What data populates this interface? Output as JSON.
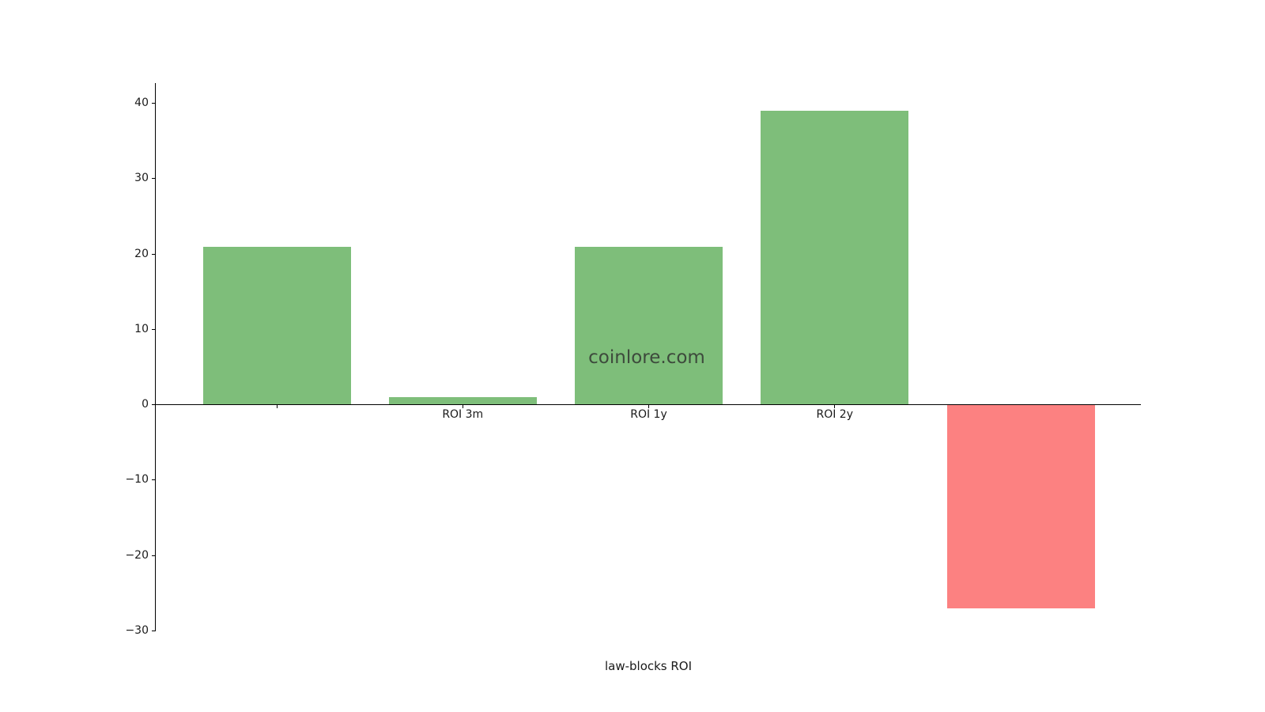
{
  "watermark": {
    "text": "coinlore.com"
  },
  "chart_data": {
    "type": "bar",
    "title": "",
    "xlabel": "law-blocks ROI",
    "ylabel": "",
    "categories": [
      "",
      "ROI 3m",
      "ROI 1y",
      "ROI 2y",
      ""
    ],
    "values": [
      21,
      1,
      21,
      39,
      -27
    ],
    "series": [
      {
        "name": "law-blocks ROI",
        "values": [
          21,
          1,
          21,
          39,
          -27
        ]
      }
    ],
    "positive_color": "#7ebe7a",
    "negative_color": "#fc8181",
    "axis_color": "#000000",
    "tick_label_color": "#1a1a1a",
    "watermark_color": "#2d2d2d",
    "y_ticks": [
      40,
      30,
      20,
      10,
      0,
      -10,
      -20,
      -30
    ],
    "y_tick_labels": [
      "40",
      "30",
      "20",
      "10",
      "0",
      "−10",
      "−20",
      "−30"
    ],
    "ylim": [
      -30,
      42.7
    ],
    "grid": false,
    "legend_position": "none",
    "baseline": 0
  }
}
